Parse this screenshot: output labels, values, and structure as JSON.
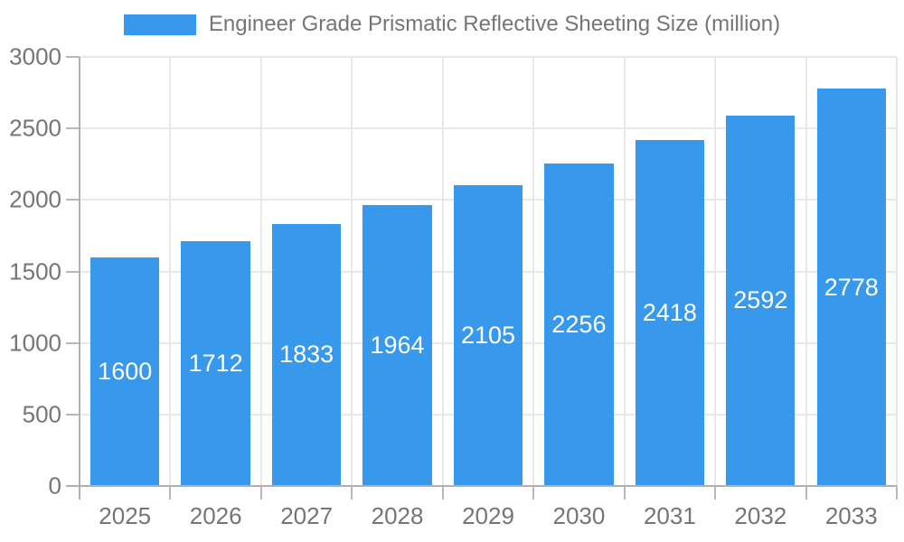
{
  "legend": {
    "swatch_color": "#3899ec"
  },
  "chart_data": {
    "type": "bar",
    "title": "Engineer Grade Prismatic Reflective Sheeting Size (million)",
    "categories": [
      "2025",
      "2026",
      "2027",
      "2028",
      "2029",
      "2030",
      "2031",
      "2032",
      "2033"
    ],
    "values": [
      1600,
      1712,
      1833,
      1964,
      2105,
      2256,
      2418,
      2592,
      2778
    ],
    "xlabel": "",
    "ylabel": "",
    "ylim": [
      0,
      3000
    ],
    "y_ticks": [
      0,
      500,
      1000,
      1500,
      2000,
      2500,
      3000
    ],
    "grid": true,
    "legend_position": "top-center",
    "bar_color": "#3899ec",
    "value_label_color": "#ffffff",
    "axis_text_color": "#757575",
    "gridline_color": "#e8e8e8",
    "axis_line_color": "#b0b0b0",
    "tick_color": "#b8b8b8"
  }
}
